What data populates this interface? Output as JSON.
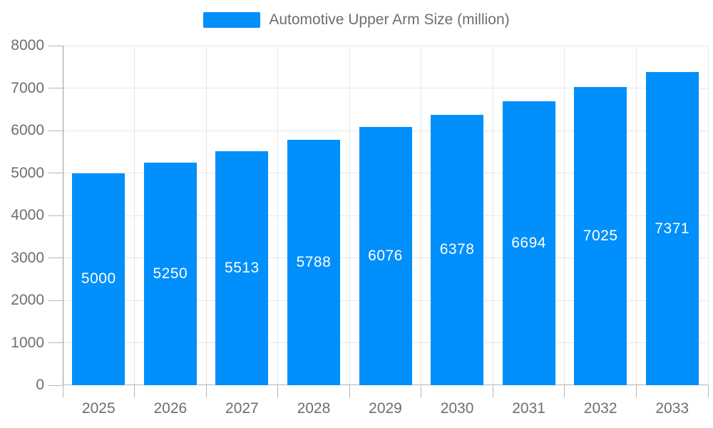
{
  "chart_data": {
    "type": "bar",
    "title": "Automotive Upper Arm Size (million)",
    "legend": {
      "position": "top",
      "items": [
        {
          "label": "Automotive Upper Arm Size (million)",
          "color": "#008FFB"
        }
      ]
    },
    "categories": [
      "2025",
      "2026",
      "2027",
      "2028",
      "2029",
      "2030",
      "2031",
      "2032",
      "2033"
    ],
    "series": [
      {
        "name": "Automotive Upper Arm Size (million)",
        "values": [
          5000,
          5250,
          5513,
          5788,
          6076,
          6378,
          6694,
          7025,
          7371
        ]
      }
    ],
    "xlabel": "",
    "ylabel": "",
    "ylim": [
      0,
      8000
    ],
    "yticks": [
      0,
      1000,
      2000,
      3000,
      4000,
      5000,
      6000,
      7000,
      8000
    ],
    "grid": "on",
    "colors": {
      "bar": "#008FFB",
      "bar_label": "#ffffff",
      "axis_text": "#6e6e6e",
      "grid_line": "#e7e7e7",
      "axis_line": "#9a9a9a",
      "tick_line": "#b6b6b6"
    }
  }
}
